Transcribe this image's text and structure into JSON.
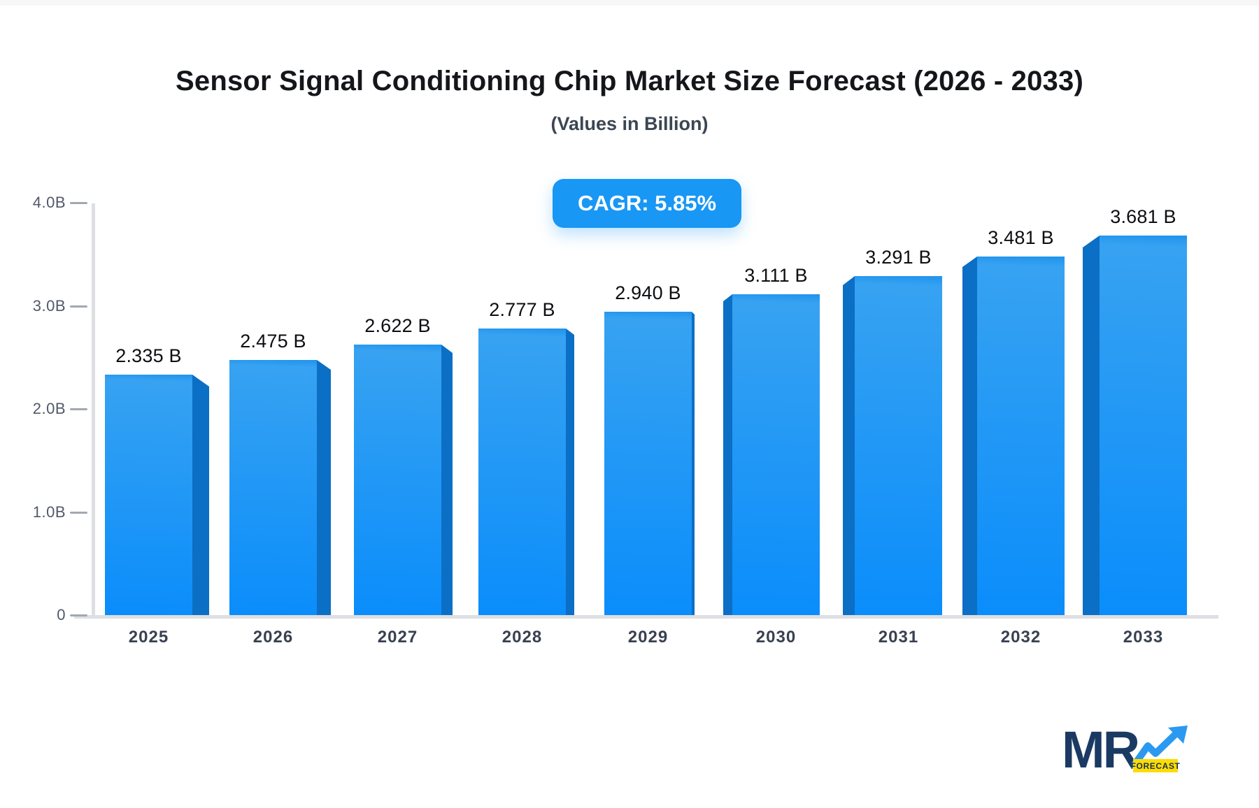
{
  "header": {
    "title": "Sensor Signal Conditioning Chip Market Size Forecast (2026 - 2033)",
    "subtitle": "(Values in Billion)",
    "cagr_label": "CAGR: 5.85%"
  },
  "chart_data": {
    "type": "bar",
    "title": "Sensor Signal Conditioning Chip Market Size Forecast (2026 - 2033)",
    "subtitle": "(Values in Billion)",
    "cagr_percent": "5.85%",
    "unit": "Billion",
    "categories": [
      "2025",
      "2026",
      "2027",
      "2028",
      "2029",
      "2030",
      "2031",
      "2032",
      "2033"
    ],
    "values": [
      2.335,
      2.475,
      2.622,
      2.777,
      2.94,
      3.111,
      3.291,
      3.481,
      3.681
    ],
    "value_labels": [
      "2.335 B",
      "2.475 B",
      "2.622 B",
      "2.777 B",
      "2.940 B",
      "3.111 B",
      "3.291 B",
      "3.481 B",
      "3.681 B"
    ],
    "ytick_labels": [
      "0",
      "1.0B",
      "2.0B",
      "3.0B",
      "4.0B"
    ],
    "ylim": [
      0,
      4
    ],
    "xlabel": "",
    "ylabel": "",
    "grid": false,
    "legend": false,
    "colors": {
      "bar_front_top": "#37a2f1",
      "bar_front_bottom": "#0a8dfb",
      "bar_side": "#0b6fc5",
      "badge_background": "#1897f5",
      "axis_line": "#dedfe3",
      "tick_text": "#51596a",
      "category_text": "#394150",
      "value_text": "#0c0e11"
    }
  },
  "footer": {
    "logo_text": "MR",
    "logo_sub": "FORECAST"
  }
}
